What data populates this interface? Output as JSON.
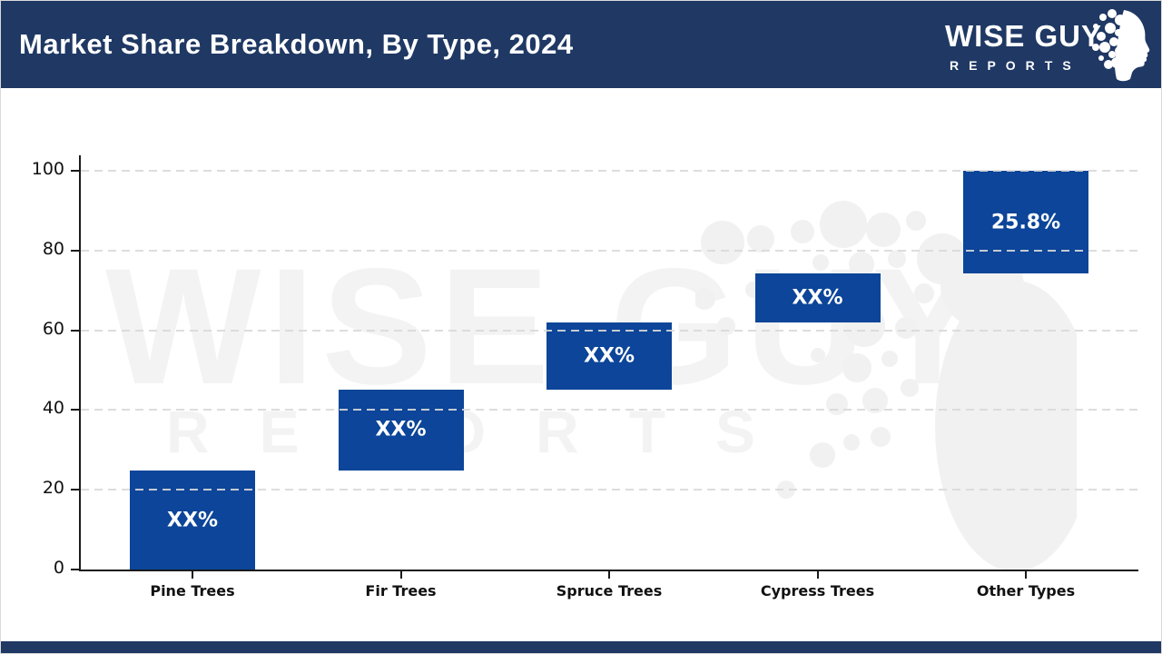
{
  "header": {
    "title": "Market Share Breakdown, By Type, 2024",
    "logo": {
      "wordmark": "WISE GUY",
      "subtext": "REPORTS"
    }
  },
  "watermark": {
    "wordmark": "WISE GUY",
    "subtext": "REPORTS"
  },
  "chart_data": {
    "type": "bar",
    "subtype": "waterfall",
    "title": "Market Share Breakdown, By Type, 2024",
    "categories": [
      "Pine Trees",
      "Fir Trees",
      "Spruce Trees",
      "Cypress Trees",
      "Other Types"
    ],
    "bars": [
      {
        "category": "Pine Trees",
        "start": 0,
        "end": 24.8,
        "label": "XX%"
      },
      {
        "category": "Fir Trees",
        "start": 24.8,
        "end": 45.2,
        "label": "XX%"
      },
      {
        "category": "Spruce Trees",
        "start": 45.2,
        "end": 61.9,
        "label": "XX%"
      },
      {
        "category": "Cypress Trees",
        "start": 61.9,
        "end": 74.2,
        "label": "XX%"
      },
      {
        "category": "Other Types",
        "start": 74.2,
        "end": 100,
        "label": "25.8%",
        "value": 25.8
      }
    ],
    "y_ticks": [
      0,
      20,
      40,
      60,
      80,
      100
    ],
    "ylim": [
      0,
      104
    ],
    "xlabel": "",
    "ylabel": "",
    "grid": "horizontal-dashed",
    "legend": "none"
  },
  "colors": {
    "header_bg": "#1f3864",
    "footer_bg": "#1f3864",
    "bar": "#0c4599",
    "bar_label": "#ffffff",
    "grid": "#d9d9d9",
    "axis": "#1a1a1a",
    "tick_text": "#111111",
    "watermark": "#f3f3f3"
  }
}
